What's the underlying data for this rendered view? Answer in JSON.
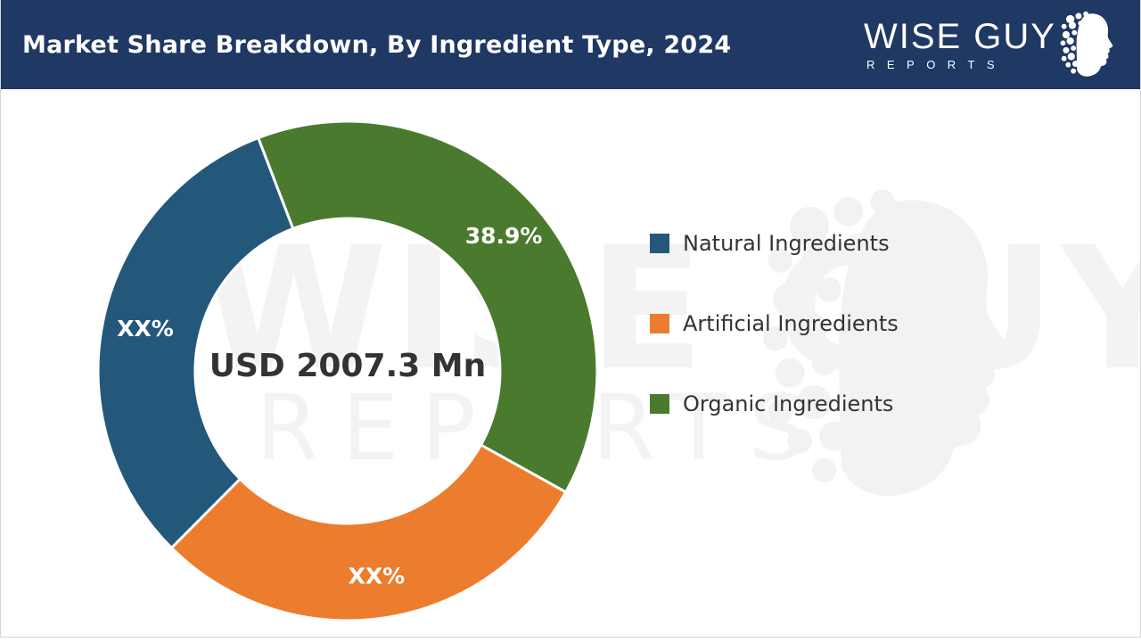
{
  "header": {
    "title": "Market Share Breakdown, By Ingredient Type, 2024",
    "logo": {
      "line1": "WISE GUY",
      "line2": "REPORTS"
    }
  },
  "watermark": {
    "line1": "WISE GUY",
    "line2": "REPORTS"
  },
  "colors": {
    "header_bg": "#1f3864",
    "title_text": "#ffffff",
    "center_text": "#333333",
    "slice_label_text": "#ffffff",
    "segment_gap": "#ffffff"
  },
  "chart_data": {
    "type": "donut",
    "title": "Market Share Breakdown, By Ingredient Type, 2024",
    "center_label": "USD 2007.3 Mn",
    "start_angle_deg": -21,
    "hole_radius_ratio": 0.61,
    "grid": false,
    "legend_position": "right",
    "segments": [
      {
        "name": "Organic Ingredients",
        "display_label": "38.9%",
        "value_pct": 38.9,
        "color": "#4a7a2e"
      },
      {
        "name": "Artificial Ingredients",
        "display_label": "XX%",
        "value_pct": 29.4,
        "color": "#ed7d2e"
      },
      {
        "name": "Natural Ingredients",
        "display_label": "XX%",
        "value_pct": 31.7,
        "color": "#24587a"
      }
    ],
    "legend": [
      {
        "label": "Natural Ingredients",
        "color": "#24587a"
      },
      {
        "label": "Artificial Ingredients",
        "color": "#ed7d2e"
      },
      {
        "label": "Organic Ingredients",
        "color": "#4a7a2e"
      }
    ]
  }
}
